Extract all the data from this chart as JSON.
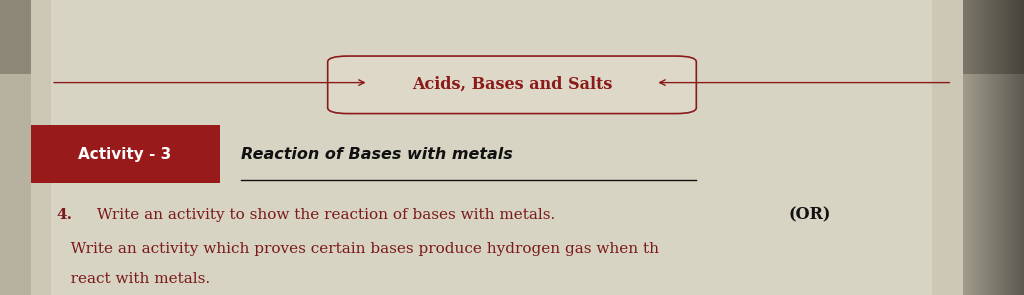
{
  "bg_top_color": "#7a7a6a",
  "bg_mid_color": "#b8b4a0",
  "page_color": "#d4cfc0",
  "page_right_shadow": "#8a8070",
  "title_text": "Acids, Bases and Salts",
  "title_color": "#8b1a1a",
  "title_box_facecolor": "#ddd8c8",
  "title_box_edgecolor": "#8b1a1a",
  "line_color": "#8b1a1a",
  "activity_label": "Activity - 3",
  "activity_bg": "#991a1a",
  "activity_text_color": "#ffffff",
  "activity_heading": "Reaction of Bases with metals",
  "activity_heading_color": "#111111",
  "body_text_color": "#7a1a1a",
  "line1_num": "4.",
  "line1_text": " Write an activity to show the reaction of bases with metals.",
  "line1_or": "(OR)",
  "line2": "   Write an activity which proves certain bases produce hydrogen gas when th",
  "line3": "   react with metals."
}
